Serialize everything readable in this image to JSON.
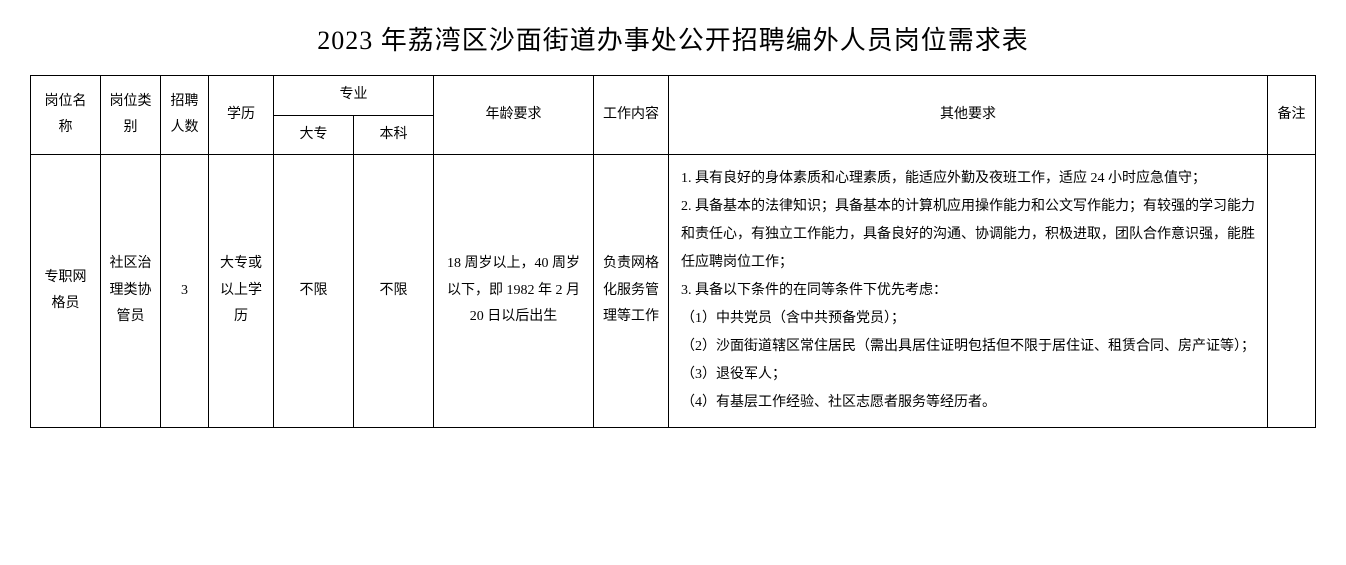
{
  "title": "2023 年荔湾区沙面街道办事处公开招聘编外人员岗位需求表",
  "headers": {
    "position": "岗位名称",
    "category": "岗位类别",
    "count": "招聘人数",
    "education": "学历",
    "major": "专业",
    "major_dz": "大专",
    "major_bk": "本科",
    "age": "年龄要求",
    "work": "工作内容",
    "other": "其他要求",
    "note": "备注"
  },
  "row": {
    "position": "专职网格员",
    "category": "社区治理类协管员",
    "count": "3",
    "education": "大专或以上学历",
    "major_dz": "不限",
    "major_bk": "不限",
    "age": "18 周岁以上，40 周岁以下，即 1982 年 2 月 20 日以后出生",
    "work": "负责网格化服务管理等工作",
    "other": "1. 具有良好的身体素质和心理素质，能适应外勤及夜班工作，适应 24 小时应急值守；\n2. 具备基本的法律知识；具备基本的计算机应用操作能力和公文写作能力；有较强的学习能力和责任心，有独立工作能力，具备良好的沟通、协调能力，积极进取，团队合作意识强，能胜任应聘岗位工作；\n3. 具备以下条件的在同等条件下优先考虑：\n（1）中共党员（含中共预备党员）；\n（2）沙面街道辖区常住居民（需出具居住证明包括但不限于居住证、租赁合同、房产证等）；\n（3）退役军人；\n（4）有基层工作经验、社区志愿者服务等经历者。",
    "note": ""
  }
}
